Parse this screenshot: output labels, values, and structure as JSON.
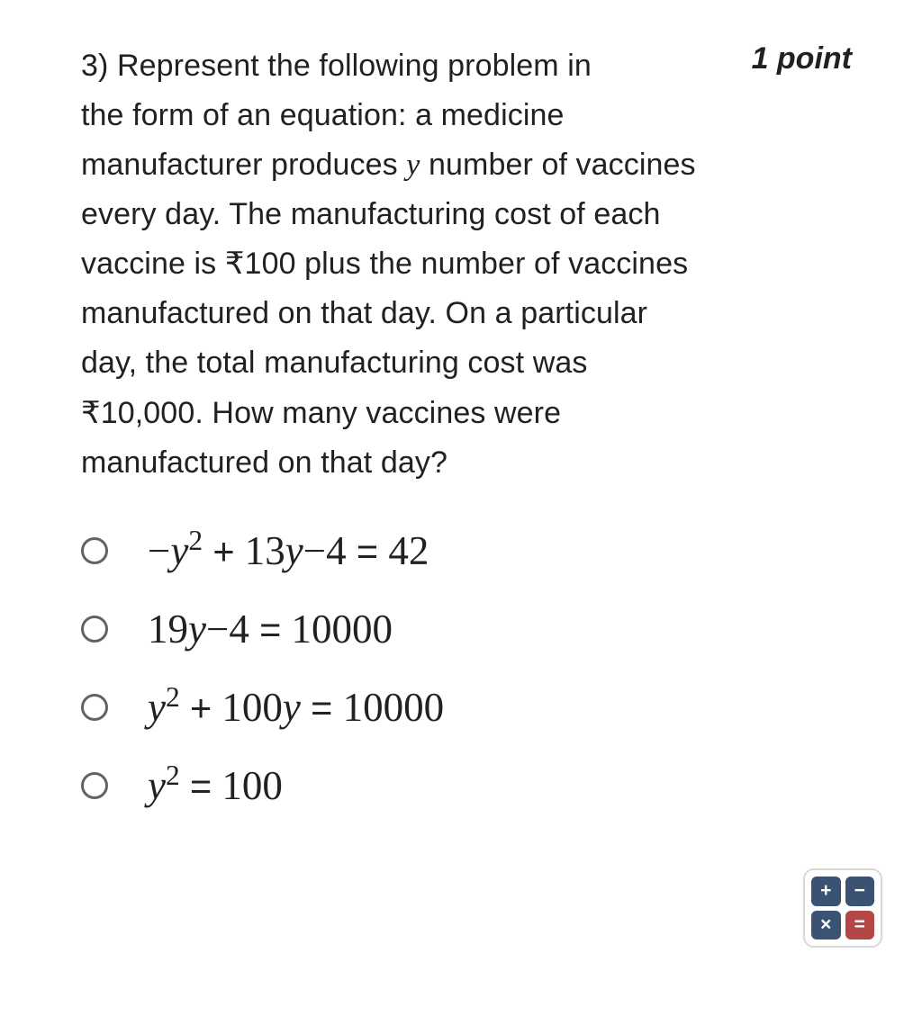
{
  "question": {
    "number": "3)",
    "points_label": "1 point",
    "line1_pre": "Represent the following problem in",
    "line2": "the form of an equation: a medicine",
    "line3_pre": "manufacturer produces ",
    "line3_var": "y",
    "line3_post": " number of vaccines",
    "line4": "every day. The manufacturing cost of each",
    "line5": "vaccine is ₹100 plus the number of vaccines",
    "line6": "manufactured on that day. On a particular",
    "line7": "day, the total manufacturing cost was",
    "line8": "₹10,000. How many vaccines were",
    "line9": "manufactured on that day?"
  },
  "options": [
    {
      "expr_html": "&minus;<span class='it'>y</span><sup>2</sup> <span class='op'>+</span> 13<span class='it'>y</span>&minus;4 <span class='op'>=</span> 42"
    },
    {
      "expr_html": "19<span class='it'>y</span>&minus;4 <span class='op'>=</span> 10000"
    },
    {
      "expr_html": "<span class='it'>y</span><sup>2</sup> <span class='op'>+</span> 100<span class='it'>y</span> <span class='op'>=</span> 10000"
    },
    {
      "expr_html": "<span class='it'>y</span><sup>2</sup> <span class='op'>=</span> 100"
    }
  ],
  "calc": {
    "tl": "+",
    "tr": "−",
    "bl": "×",
    "br": "="
  },
  "colors": {
    "text": "#202124",
    "radio_border": "#5f6368",
    "calc_blue": "#3b5372",
    "calc_red": "#b54646"
  }
}
